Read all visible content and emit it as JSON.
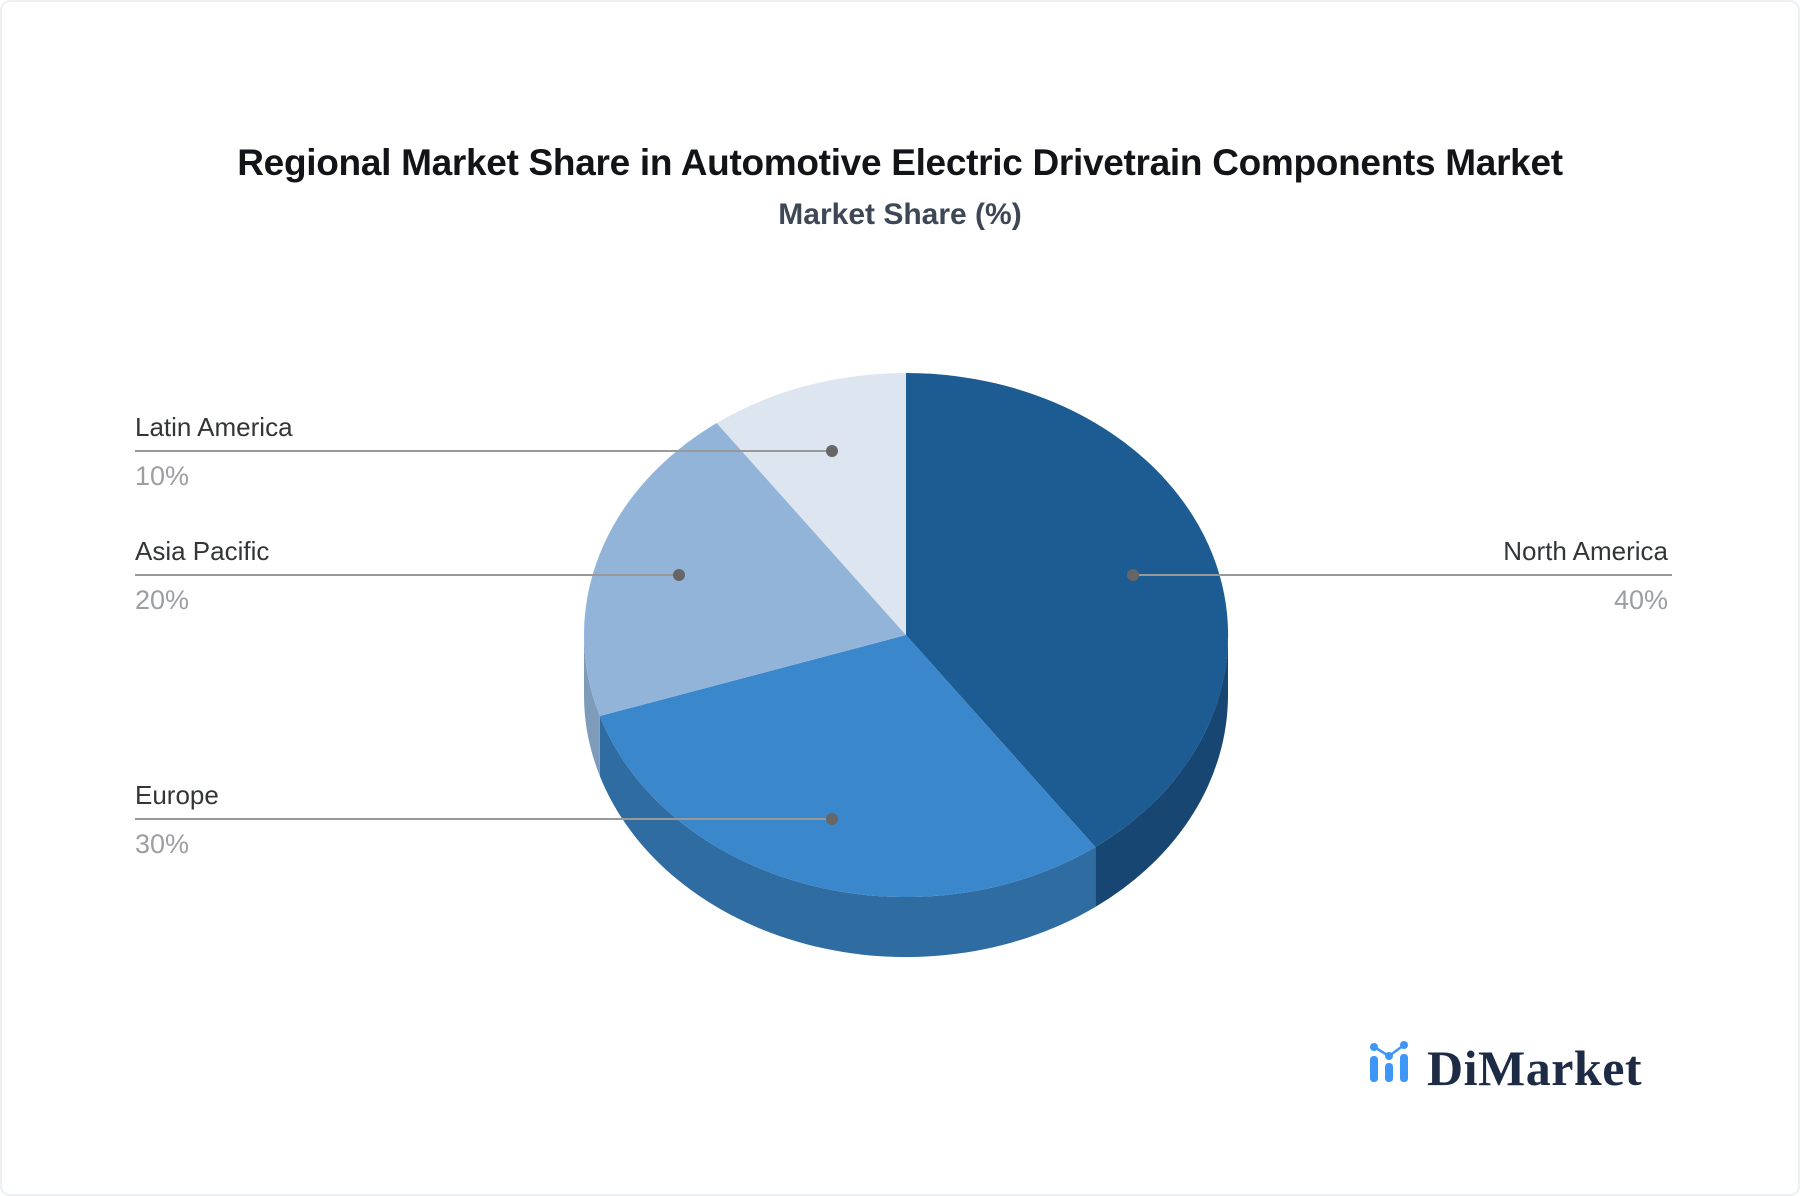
{
  "header": {
    "title": "Regional Market Share in Automotive Electric Drivetrain Components Market",
    "subtitle": "Market Share (%)"
  },
  "chart_data": {
    "type": "pie",
    "style": "3d",
    "title": "Regional Market Share in Automotive Electric Drivetrain Components Market",
    "subtitle": "Market Share (%)",
    "unit": "%",
    "start_angle_deg": 0,
    "direction": "clockwise",
    "slices": [
      {
        "label": "North America",
        "value": 40,
        "display_value": "40%",
        "color": "#1d5b93",
        "side_color": "#174672",
        "callout_side": "right"
      },
      {
        "label": "Europe",
        "value": 30,
        "display_value": "30%",
        "color": "#3b87cb",
        "side_color": "#2f6ca2",
        "callout_side": "left"
      },
      {
        "label": "Asia Pacific",
        "value": 20,
        "display_value": "20%",
        "color": "#92b4d9",
        "side_color": "#7e9cba",
        "callout_side": "left"
      },
      {
        "label": "Latin America",
        "value": 10,
        "display_value": "10%",
        "color": "#dde5f0",
        "side_color": "#c4d0e0",
        "callout_side": "left"
      }
    ],
    "callout_style": {
      "line_color": "#999999",
      "dot_color": "#666666",
      "label_color": "#333537",
      "value_color": "#9c9ea1"
    },
    "legend_position": "callout-labels"
  },
  "logo": {
    "text": "DiMarket",
    "icon": "bar-line-chart-icon",
    "icon_color": "#3e97f6",
    "text_color": "#1d2b45"
  }
}
